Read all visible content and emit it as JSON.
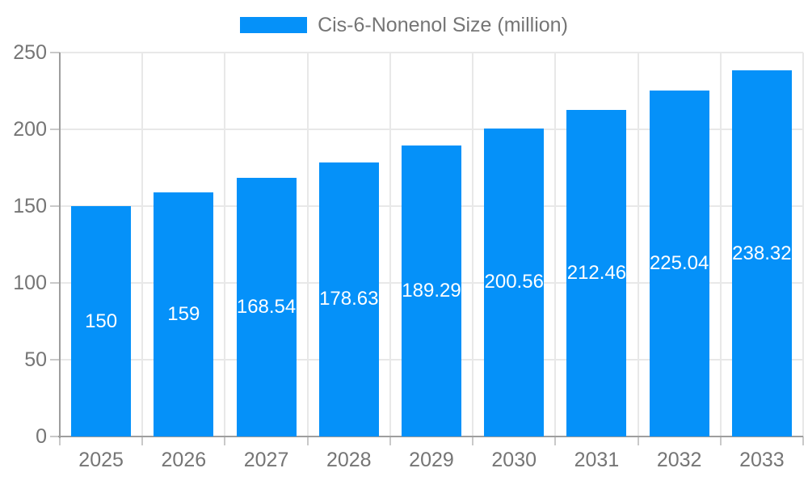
{
  "chart_data": {
    "type": "bar",
    "title": "",
    "categories": [
      "2025",
      "2026",
      "2027",
      "2028",
      "2029",
      "2030",
      "2031",
      "2032",
      "2033"
    ],
    "series": [
      {
        "name": "Cis-6-Nonenol Size (million)",
        "values": [
          150,
          159,
          168.54,
          178.63,
          189.29,
          200.56,
          212.46,
          225.04,
          238.32
        ],
        "value_labels": [
          "150",
          "159",
          "168.54",
          "178.63",
          "189.29",
          "200.56",
          "212.46",
          "225.04",
          "238.32"
        ]
      }
    ],
    "xlabel": "",
    "ylabel": "",
    "ylim": [
      0,
      250
    ],
    "y_ticks": [
      0,
      50,
      100,
      150,
      200,
      250
    ],
    "grid": true,
    "legend_position": "top",
    "colors": {
      "bar": "#0591F9",
      "value_label": "#FFFFFF",
      "axis_label": "#757575",
      "gridline": "#E8E8E8",
      "axis_line": "#9E9E9E",
      "tick_mark": "#C9C9C9",
      "background": "#FFFFFF"
    }
  }
}
